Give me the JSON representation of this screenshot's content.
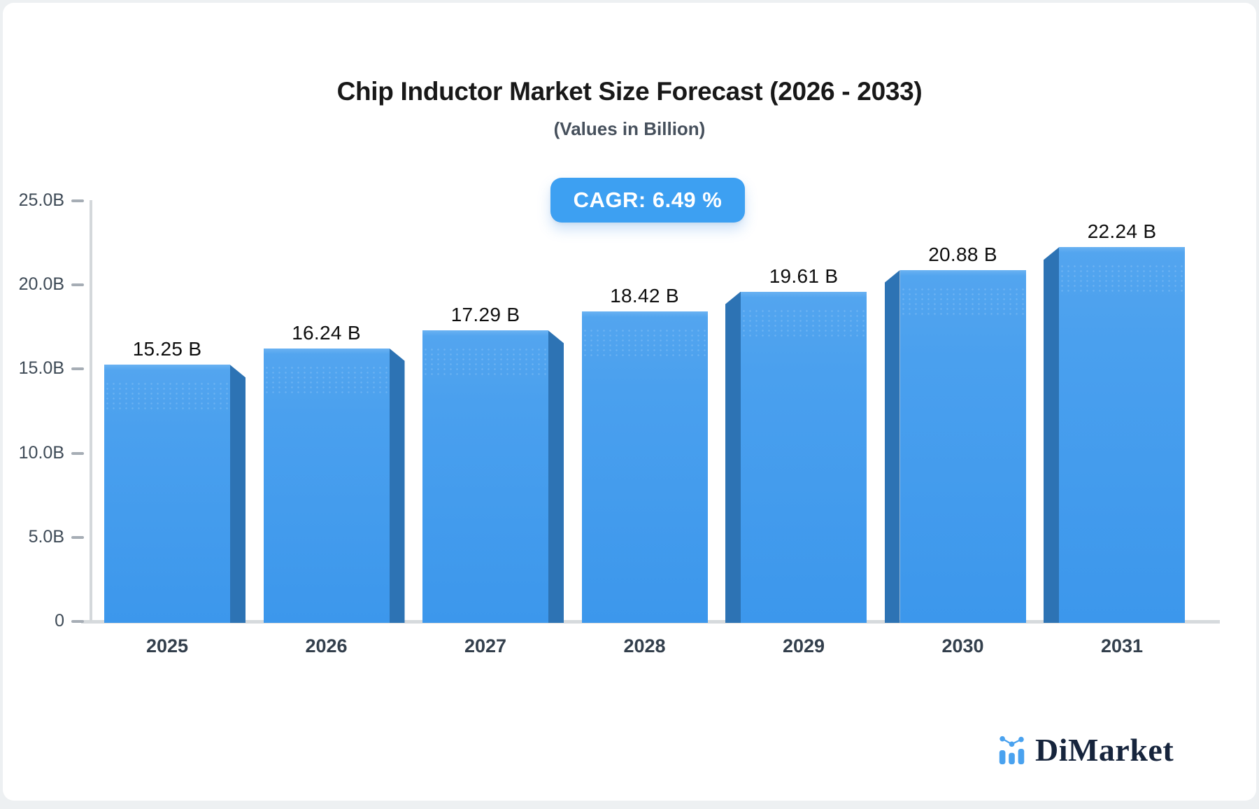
{
  "page": {
    "background": "#edf0f2",
    "card_background": "#ffffff"
  },
  "header": {
    "title": "Chip Inductor Market Size Forecast (2026 - 2033)",
    "subtitle": "(Values in Billion)"
  },
  "badge": {
    "label": "CAGR: 6.49 %",
    "background": "#3da0f2",
    "text_color": "#ffffff"
  },
  "chart_data": {
    "type": "bar",
    "title": "Chip Inductor Market Size Forecast (2026 - 2033)",
    "subtitle": "(Values in Billion)",
    "cagr": "6.49 %",
    "categories": [
      "2025",
      "2026",
      "2027",
      "2028",
      "2029",
      "2030",
      "2031"
    ],
    "values": [
      15.25,
      16.24,
      17.29,
      18.42,
      19.61,
      20.88,
      22.24
    ],
    "bar_labels": [
      "15.25 B",
      "16.24 B",
      "17.29 B",
      "18.42 B",
      "19.61 B",
      "20.88 B",
      "22.24 B"
    ],
    "ylim": [
      0,
      25
    ],
    "y_ticks": [
      {
        "value": 25,
        "label": "25.0B"
      },
      {
        "value": 20,
        "label": "20.0B"
      },
      {
        "value": 15,
        "label": "15.0B"
      },
      {
        "value": 10,
        "label": "10.0B"
      },
      {
        "value": 5,
        "label": "5.0B"
      },
      {
        "value": 0,
        "label": "0"
      }
    ],
    "xlabel": "",
    "ylabel": "",
    "grid": false,
    "legend": false,
    "bar_color_top": "#66b0f2",
    "bar_color_bottom": "#3c97ec",
    "bar_edge_color": "#2d73b4"
  },
  "axis": {
    "line_color": "#d4d8db",
    "tick_color": "#a6adb5",
    "label_color": "#3e4a56"
  },
  "branding": {
    "name": "DiMarket",
    "icon": "bar-chart-sparkline-icon",
    "icon_color": "#4aa2ef",
    "text_color": "#16243c"
  }
}
